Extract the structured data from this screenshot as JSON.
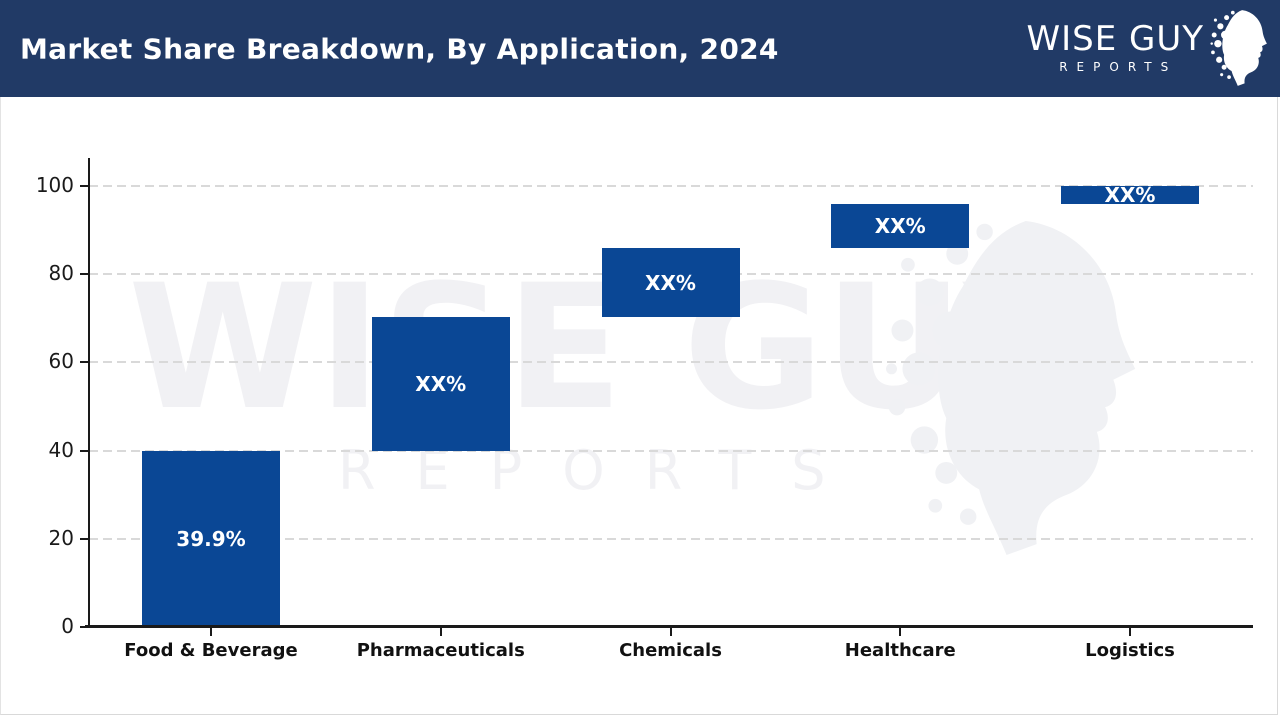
{
  "header": {
    "title": "Market Share Breakdown, By Application, 2024",
    "logo": {
      "line1": "WISE GUY",
      "line2": "REPORTS"
    }
  },
  "watermark": {
    "line1": "WISE GUY",
    "line2": "REPORTS"
  },
  "chart_data": {
    "type": "bar",
    "subtype": "waterfall",
    "title": "Market Share Breakdown, By Application, 2024",
    "categories": [
      "Food & Beverage",
      "Pharmaceuticals",
      "Chemicals",
      "Healthcare",
      "Logistics"
    ],
    "segments": [
      {
        "category": "Food & Beverage",
        "start": 0,
        "end": 39.9,
        "label": "39.9%"
      },
      {
        "category": "Pharmaceuticals",
        "start": 39.9,
        "end": 70.3,
        "label": "XX%"
      },
      {
        "category": "Chemicals",
        "start": 70.3,
        "end": 85.9,
        "label": "XX%"
      },
      {
        "category": "Healthcare",
        "start": 85.9,
        "end": 96.0,
        "label": "XX%"
      },
      {
        "category": "Logistics",
        "start": 96.0,
        "end": 100.0,
        "label": "XX%"
      }
    ],
    "ylim": [
      0,
      100
    ],
    "yticks": [
      0,
      20,
      40,
      60,
      80,
      100
    ],
    "grid": "horizontal-dashed",
    "legend": "none",
    "xlabel": "",
    "ylabel": "",
    "colors": {
      "bar": "#0a4795",
      "bar_label": "#ffffff",
      "axis": "#1a1a1a",
      "gridline": "#d9d9d9",
      "header_bg": "#213a66",
      "header_text": "#ffffff",
      "watermark": "#f1f1f4"
    }
  }
}
